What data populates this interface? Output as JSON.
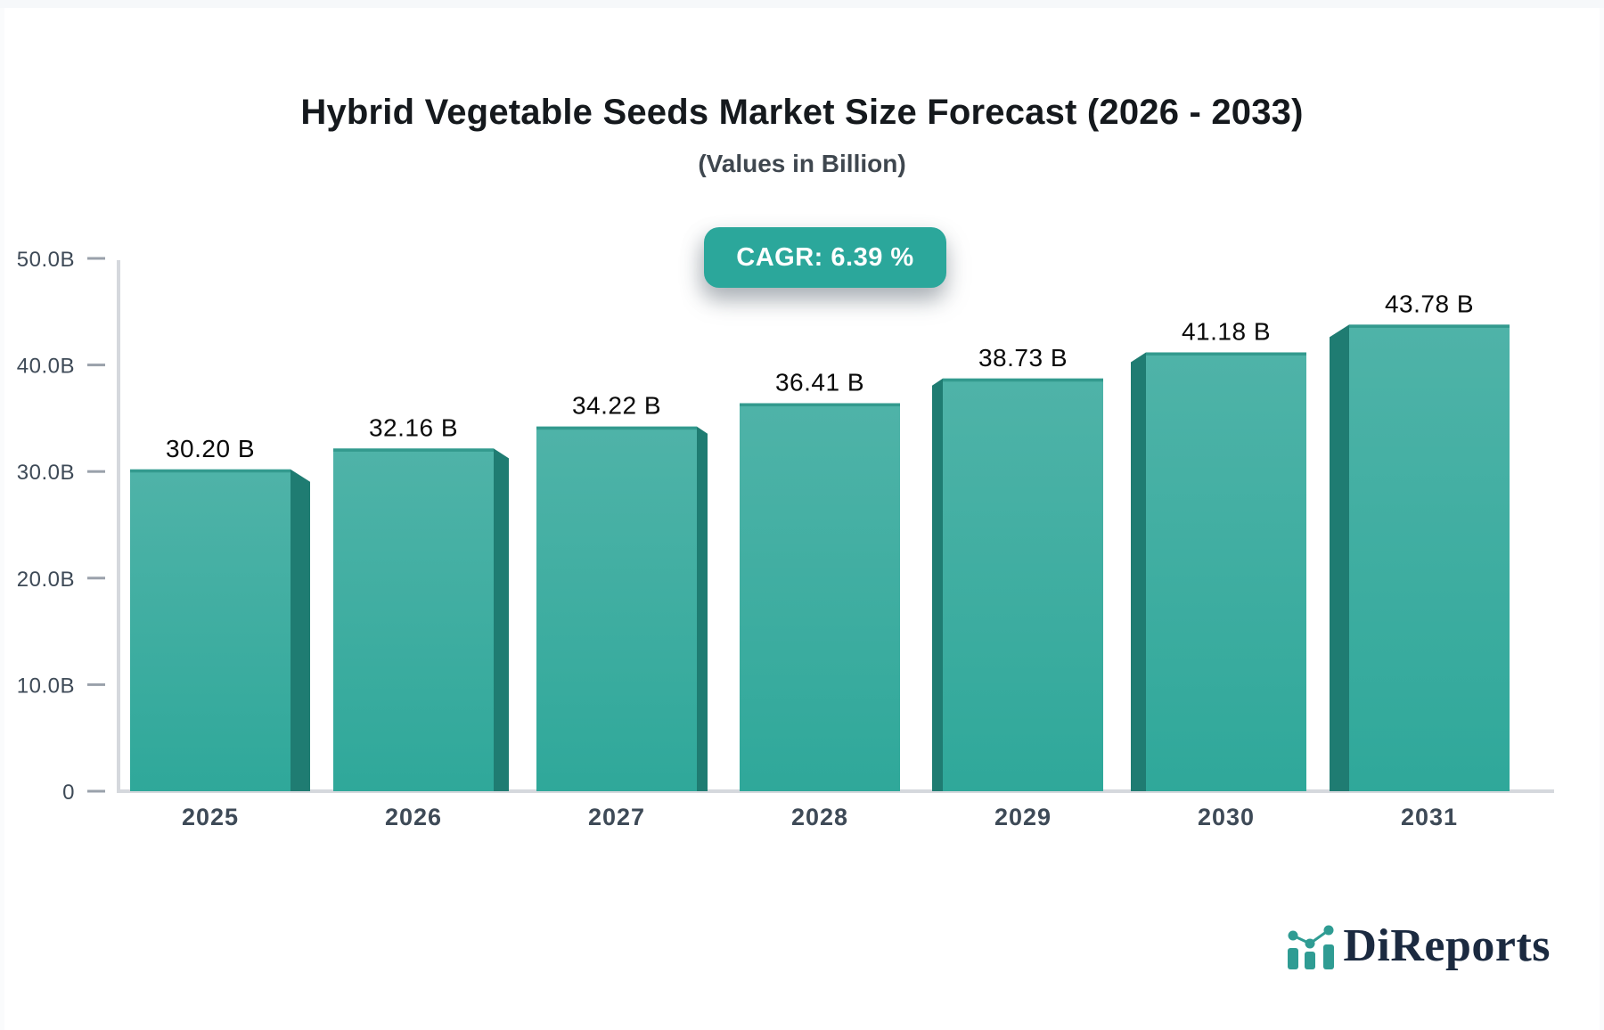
{
  "page": {
    "title": "Hybrid Vegetable Seeds Market Size Forecast (2026 - 2033)",
    "subtitle": "(Values in Billion)"
  },
  "badge": {
    "label": "CAGR: 6.39 %"
  },
  "chart_data": {
    "type": "bar",
    "title": "Hybrid Vegetable Seeds Market Size Forecast (2026 - 2033)",
    "subtitle": "(Values in Billion)",
    "unit": "Billion",
    "cagr_percent": 6.39,
    "categories": [
      "2025",
      "2026",
      "2027",
      "2028",
      "2029",
      "2030",
      "2031"
    ],
    "values": [
      30.2,
      32.16,
      34.22,
      36.41,
      38.73,
      41.18,
      43.78
    ],
    "value_labels": [
      "30.20 B",
      "32.16 B",
      "34.22 B",
      "36.41 B",
      "38.73 B",
      "41.18 B",
      "43.78 B"
    ],
    "xlabel": "",
    "ylabel": "",
    "ylim": [
      0,
      50
    ],
    "y_tick_values": [
      0,
      10,
      20,
      30,
      40,
      50
    ],
    "y_tick_labels": [
      "0",
      "10.0B",
      "20.0B",
      "30.0B",
      "40.0B",
      "50.0B"
    ],
    "grid": "off",
    "legend": "none",
    "colors": {
      "bar_top": "#4fb3a8",
      "bar_bottom": "#2fa89a",
      "bar_side": "#1f7c72",
      "bar_edge": "#339a8e",
      "axis_line": "#d5d8dd",
      "tick_dash": "#9aa1ab",
      "tick_label": "#3e4a57",
      "value_label": "#0a0a0a",
      "badge_bg": "#2ba79b",
      "badge_text": "#ffffff",
      "logo_navy": "#1b2a40",
      "logo_teal": "#2f9c93"
    }
  },
  "logo": {
    "text": "DiReports",
    "icon": "bar-line-chart-icon"
  }
}
